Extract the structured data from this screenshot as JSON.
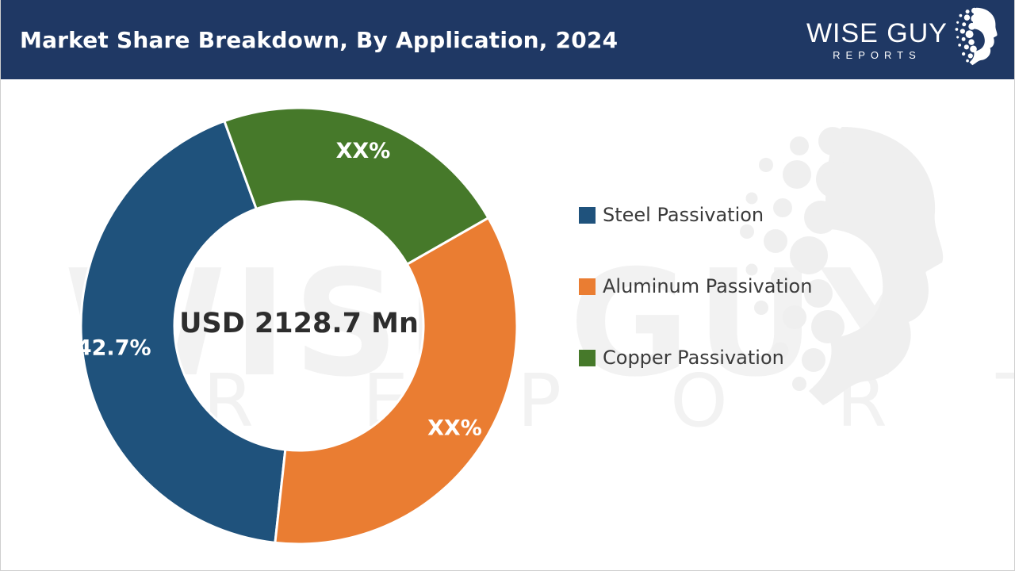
{
  "header": {
    "title": "Market Share Breakdown, By Application, 2024",
    "logo": {
      "name": "WISE GUY",
      "tagline": "REPORTS"
    }
  },
  "watermark": {
    "line1": "WISE GUY",
    "line2": "R E P O R T S"
  },
  "colors": {
    "header_bg": "#1F3864",
    "steel_blue": "#1F527C",
    "aluminum_orange": "#EA7D32",
    "copper_green": "#46792A"
  },
  "chart_data": {
    "type": "pie",
    "subtype": "donut",
    "title": "Market Share Breakdown, By Application, 2024",
    "center_label": "USD 2128.7 Mn",
    "start_angle_deg": 110,
    "direction": "counterclockwise",
    "legend_position": "right",
    "grid": false,
    "segments": [
      {
        "label": "Steel Passivation",
        "display_pct": "42.7%",
        "value_pct": 42.7,
        "color": "#1F527C"
      },
      {
        "label": "Aluminum Passivation",
        "display_pct": "XX%",
        "value_pct": 35.0,
        "color": "#EA7D32"
      },
      {
        "label": "Copper Passivation",
        "display_pct": "XX%",
        "value_pct": 22.3,
        "color": "#46792A"
      }
    ]
  }
}
